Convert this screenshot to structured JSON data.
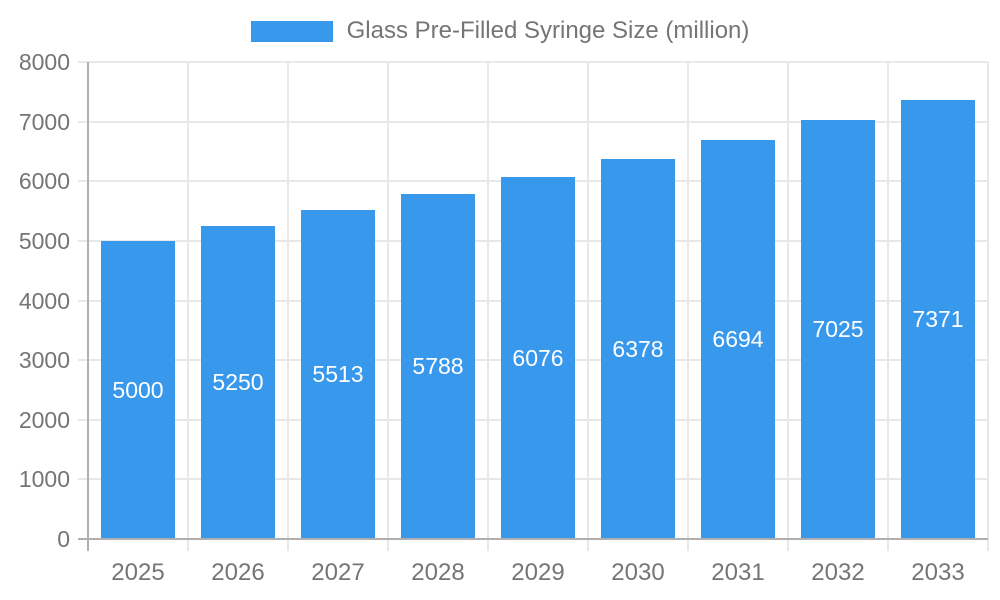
{
  "legend": {
    "items": [
      {
        "label": "Glass Pre-Filled Syringe Size (million)",
        "color": "#3899EC"
      }
    ]
  },
  "colors": {
    "bar": "#3899EC",
    "bar_label": "#FFFFFF",
    "grid": "#E8E8E8",
    "axis": "#AFAFAF",
    "text": "#757575",
    "background": "#FFFFFF"
  },
  "chart_data": {
    "type": "bar",
    "categories": [
      "2025",
      "2026",
      "2027",
      "2028",
      "2029",
      "2030",
      "2031",
      "2032",
      "2033"
    ],
    "values": [
      5000,
      5250,
      5513,
      5788,
      6076,
      6378,
      6694,
      7025,
      7371
    ],
    "series_name": "Glass Pre-Filled Syringe Size (million)",
    "ylim": [
      0,
      8000
    ],
    "ytick_interval": 1000,
    "yticks": [
      0,
      1000,
      2000,
      3000,
      4000,
      5000,
      6000,
      7000,
      8000
    ],
    "grid": true,
    "legend_position": "top-center",
    "value_labels": "inside-center"
  }
}
